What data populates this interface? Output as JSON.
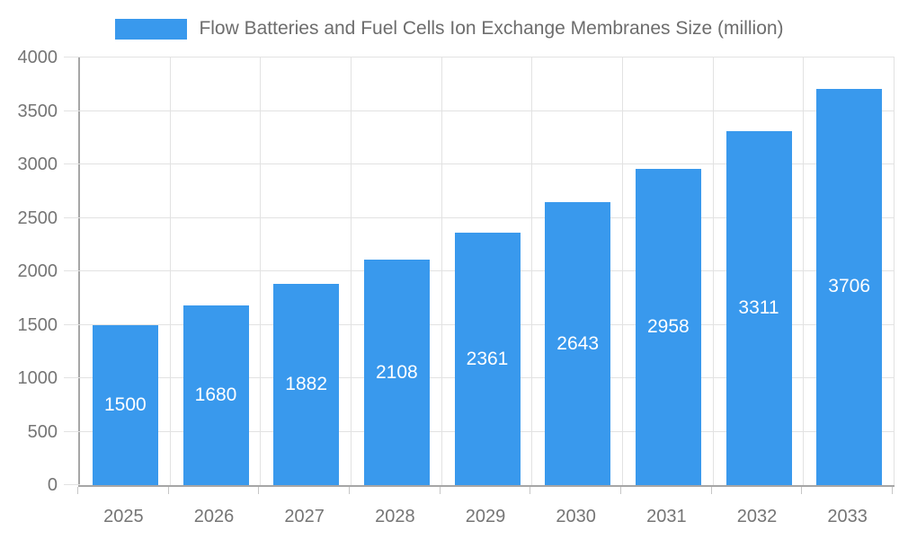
{
  "legend": {
    "label": "Flow Batteries and Fuel Cells Ion Exchange Membranes Size (million)"
  },
  "colors": {
    "bar": "#3999ed",
    "grid": "#e2e2e2",
    "axis": "#a6a6a6",
    "tick": "#c6c6c6",
    "axis_label": "#757575",
    "legend_label": "#6d6d6d",
    "value_label": "#ffffff",
    "background": "#ffffff"
  },
  "chart_data": {
    "type": "bar",
    "title": "Flow Batteries and Fuel Cells Ion Exchange Membranes Size (million)",
    "categories": [
      "2025",
      "2026",
      "2027",
      "2028",
      "2029",
      "2030",
      "2031",
      "2032",
      "2033"
    ],
    "values": [
      1500,
      1680,
      1882,
      2108,
      2361,
      2643,
      2958,
      3311,
      3706
    ],
    "series": [
      {
        "name": "Flow Batteries and Fuel Cells Ion Exchange Membranes Size (million)",
        "values": [
          1500,
          1680,
          1882,
          2108,
          2361,
          2643,
          2958,
          3311,
          3706
        ]
      }
    ],
    "xlabel": "",
    "ylabel": "",
    "ylim": [
      0,
      4000
    ],
    "yticks": [
      0,
      500,
      1000,
      1500,
      2000,
      2500,
      3000,
      3500,
      4000
    ],
    "grid": true,
    "legend_position": "top-center",
    "value_labels": "inside-center-white"
  }
}
